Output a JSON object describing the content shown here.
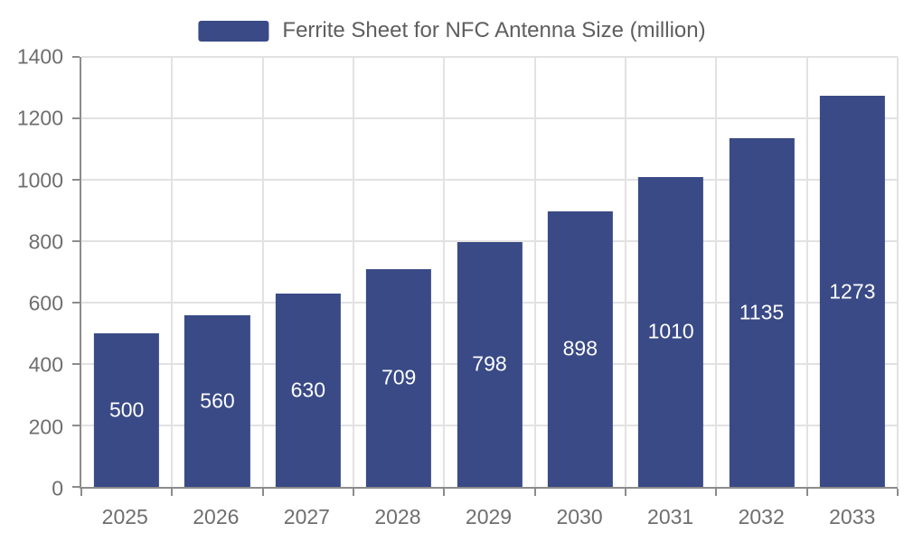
{
  "legend": {
    "label": "Ferrite Sheet for NFC Antenna Size (million)"
  },
  "chart_data": {
    "type": "bar",
    "title": "Ferrite Sheet for NFC Antenna Size (million)",
    "series_name": "Ferrite Sheet for NFC Antenna Size (million)",
    "categories": [
      "2025",
      "2026",
      "2027",
      "2028",
      "2029",
      "2030",
      "2031",
      "2032",
      "2033"
    ],
    "values": [
      500,
      560,
      630,
      709,
      798,
      898,
      1010,
      1135,
      1273
    ],
    "xlabel": "",
    "ylabel": "",
    "ylim": [
      0,
      1400
    ],
    "yticks": [
      0,
      200,
      400,
      600,
      800,
      1000,
      1200,
      1400
    ],
    "grid": "horizontal and vertical light gridlines",
    "legend_position": "top-center",
    "value_label_style": "inside bar, vertically centered, white",
    "bar_width_fraction": 0.72,
    "colors": {
      "bar": "#394A86",
      "grid": "#E2E2E2",
      "axis": "#8C8C8C",
      "tick_text": "#6E6E6E",
      "legend_text": "#5E5E5E",
      "value_label": "#FFFFFF",
      "background": "#FFFFFF"
    }
  }
}
